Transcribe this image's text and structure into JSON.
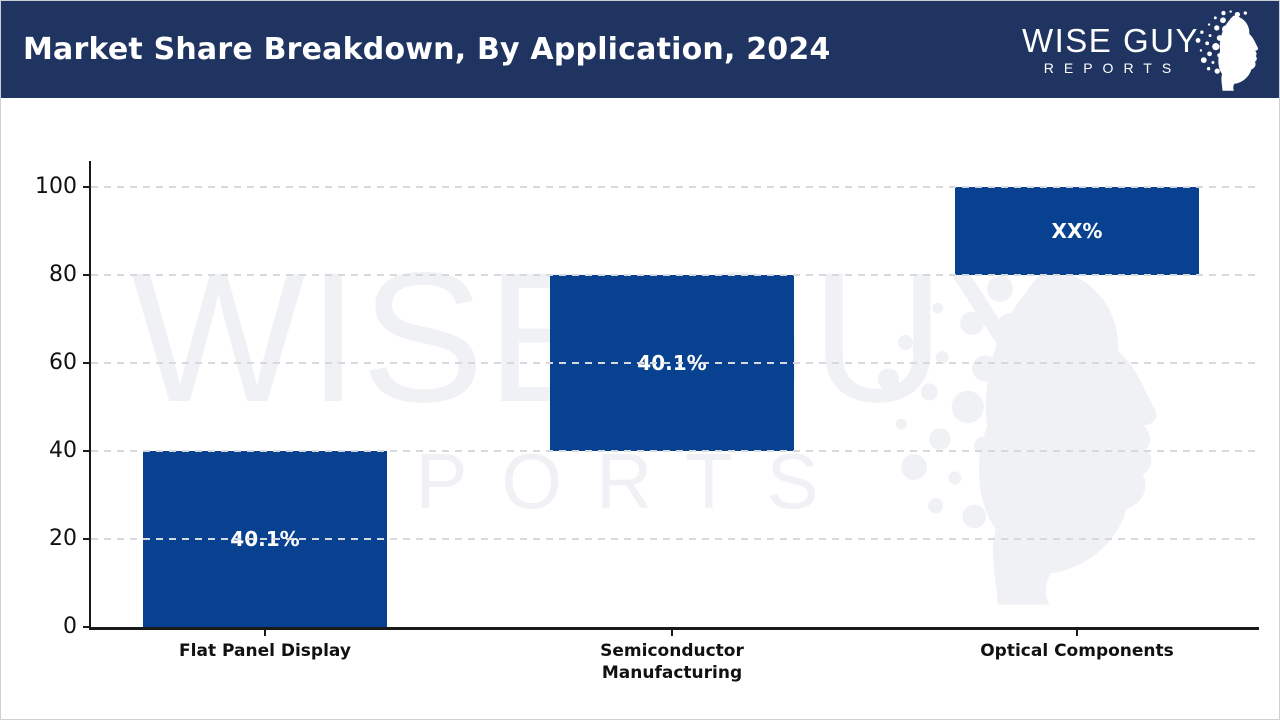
{
  "header": {
    "title": "Market Share Breakdown, By Application, 2024",
    "logo": {
      "name": "WISE GUY",
      "subtitle": "REPORTS"
    }
  },
  "watermark": {
    "line1": "WISE GUY",
    "line2": "REPORTS"
  },
  "chart_data": {
    "type": "bar",
    "subtype": "floating-segment-waterfall",
    "title": "Market Share Breakdown, By Application, 2024",
    "categories": [
      "Flat Panel Display",
      "Semiconductor\nManufacturing",
      "Optical Components"
    ],
    "series": [
      {
        "name": "Market Share (%)",
        "segments": [
          {
            "category": "Flat Panel Display",
            "start": 0,
            "end": 40,
            "label": "40.1%"
          },
          {
            "category": "Semiconductor Manufacturing",
            "start": 40,
            "end": 80,
            "label": "40.1%"
          },
          {
            "category": "Optical Components",
            "start": 80,
            "end": 100,
            "label": "XX%"
          }
        ]
      }
    ],
    "xlabel": "",
    "ylabel": "",
    "yticks": [
      0,
      20,
      40,
      60,
      80,
      100
    ],
    "ylim": [
      0,
      105.9
    ],
    "grid": "horizontal-dashed",
    "legend": "none",
    "bar_color": "#074190",
    "bar_label_color": "#ffffff"
  },
  "colors": {
    "header_bg": "#203462",
    "bar": "#074190",
    "grid": "#d7d9dc",
    "axis": "#1a1a1a",
    "watermark": "#f0f1f4",
    "page_border": "#ccd0d5"
  }
}
